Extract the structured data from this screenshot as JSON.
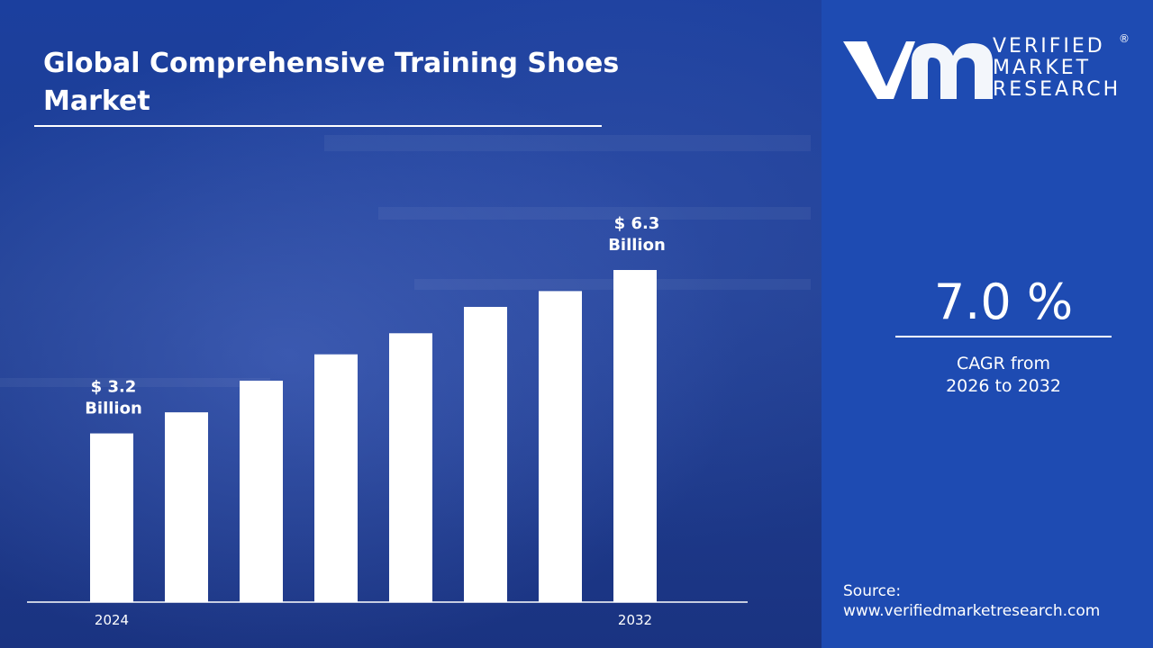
{
  "title": "Global Comprehensive Training Shoes Market",
  "logo": {
    "text_line1": "VERIFIED",
    "text_line2": "MARKET",
    "text_line3": "RESEARCH",
    "registered_mark": "®"
  },
  "cagr": {
    "value": "7.0 %",
    "label_line1": "CAGR from",
    "label_line2": "2026 to 2032"
  },
  "source": {
    "label": "Source:",
    "url": "www.verifiedmarketresearch.com"
  },
  "colors": {
    "accent_panel": "#1e4bb2",
    "bar": "#ffffff",
    "text": "#ffffff"
  },
  "chart_data": {
    "type": "bar",
    "categories": [
      "2024",
      "",
      "",
      "",
      "",
      "",
      "",
      "2032"
    ],
    "values": [
      3.2,
      3.6,
      4.2,
      4.7,
      5.1,
      5.6,
      5.9,
      6.3
    ],
    "data_labels": [
      {
        "index": 0,
        "line1": "$ 3.2",
        "line2": "Billion"
      },
      {
        "index": 7,
        "line1": "$ 6.3",
        "line2": "Billion"
      }
    ],
    "ylim": [
      0,
      6.3
    ],
    "title": "Global Comprehensive Training Shoes Market",
    "xlabel": "",
    "ylabel": "",
    "grid": false,
    "legend": "none"
  }
}
